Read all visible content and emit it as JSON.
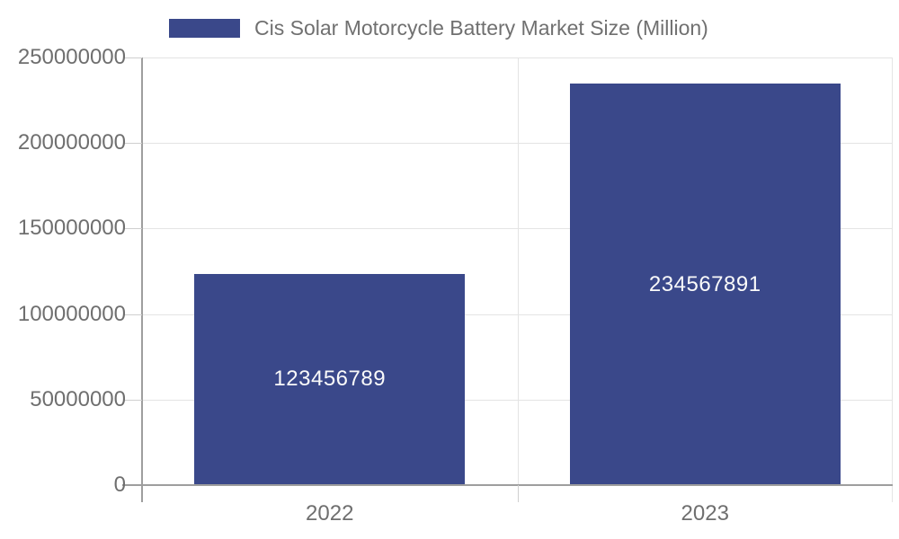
{
  "chart_data": {
    "type": "bar",
    "title": "Cis Solar Motorcycle Battery Market Size (Million)",
    "legend": {
      "label": "Cis Solar Motorcycle Battery Market Size (Million)",
      "position": "top",
      "swatch_color": "#3A488A"
    },
    "categories": [
      "2022",
      "2023"
    ],
    "series": [
      {
        "name": "Cis Solar Motorcycle Battery Market Size (Million)",
        "values": [
          123456789,
          234567891
        ]
      }
    ],
    "value_labels": [
      "123456789",
      "234567891"
    ],
    "ylim": [
      0,
      250000000
    ],
    "ytick_labels": [
      "0",
      "50000000",
      "100000000",
      "150000000",
      "200000000",
      "250000000"
    ],
    "xlabel": "",
    "ylabel": "",
    "grid": true,
    "colors": {
      "bar": "#3A488A",
      "bar_label_text": "#FAFAFA",
      "axis_text": "#6F6F6F",
      "gridline": "#E4E4E4",
      "axis_line": "#9E9E9E"
    }
  }
}
